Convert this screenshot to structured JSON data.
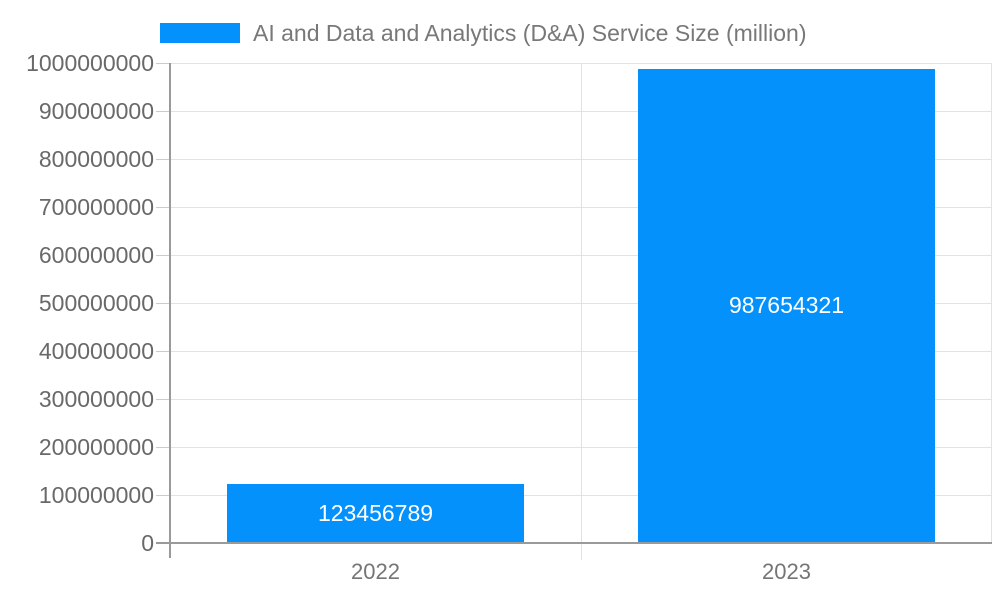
{
  "legend": {
    "label": "AI and Data and Analytics (D&A) Service Size (million)",
    "swatch_color": "#0591fb"
  },
  "chart_data": {
    "type": "bar",
    "title": "AI and Data and Analytics (D&A) Service Size (million)",
    "series_name": "AI and Data and Analytics (D&A) Service Size (million)",
    "categories": [
      "2022",
      "2023"
    ],
    "values": [
      123456789,
      987654321
    ],
    "value_labels": [
      "123456789",
      "987654321"
    ],
    "xlabel": "",
    "ylabel": "",
    "ylim": [
      0,
      1000000000
    ],
    "ytick_step": 100000000,
    "ytick_labels": [
      "0",
      "100000000",
      "200000000",
      "300000000",
      "400000000",
      "500000000",
      "600000000",
      "700000000",
      "800000000",
      "900000000",
      "1000000000"
    ],
    "grid": true,
    "legend_position": "top",
    "colors": {
      "bar": "#0591fb",
      "bar_label": "#ffffff",
      "grid": "#e2e2e2",
      "axis": "#9a9a9a",
      "tick": "#cccccc",
      "y_label": "#696969",
      "x_label": "#757575",
      "legend_text": "#787878"
    }
  }
}
